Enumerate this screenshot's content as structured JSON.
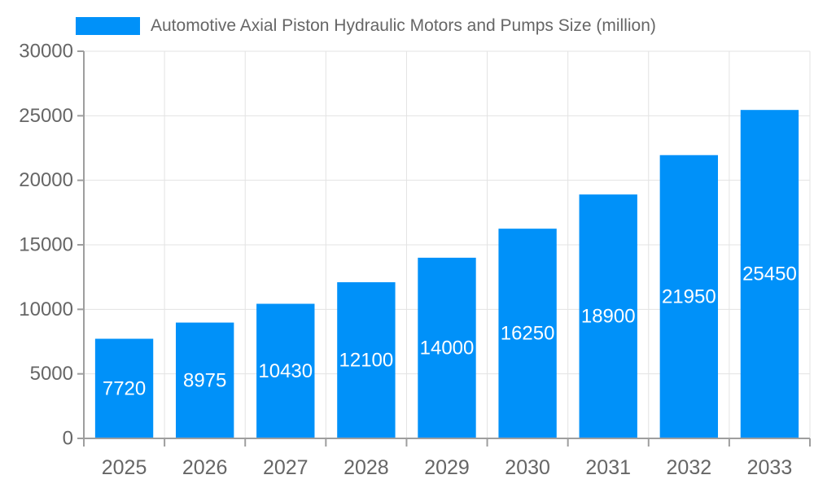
{
  "chart_data": {
    "type": "bar",
    "title": "Automotive Axial Piston Hydraulic Motors and Pumps Size (million)",
    "categories": [
      "2025",
      "2026",
      "2027",
      "2028",
      "2029",
      "2030",
      "2031",
      "2032",
      "2033"
    ],
    "values": [
      7720,
      8975,
      10430,
      12100,
      14000,
      16250,
      18900,
      21950,
      25450
    ],
    "xlabel": "",
    "ylabel": "",
    "ylim": [
      0,
      30000
    ],
    "yticks": [
      0,
      5000,
      10000,
      15000,
      20000,
      25000,
      30000
    ],
    "grid": true,
    "legend_position": "top-left",
    "value_labels": "inside-center"
  },
  "colors": {
    "bar": "#0091f9",
    "grid": "#e3e3e3",
    "axis": "#9e9e9e",
    "tick_text": "#666666",
    "title_text": "#666666",
    "value_label": "#ffffff",
    "background": "#ffffff"
  }
}
